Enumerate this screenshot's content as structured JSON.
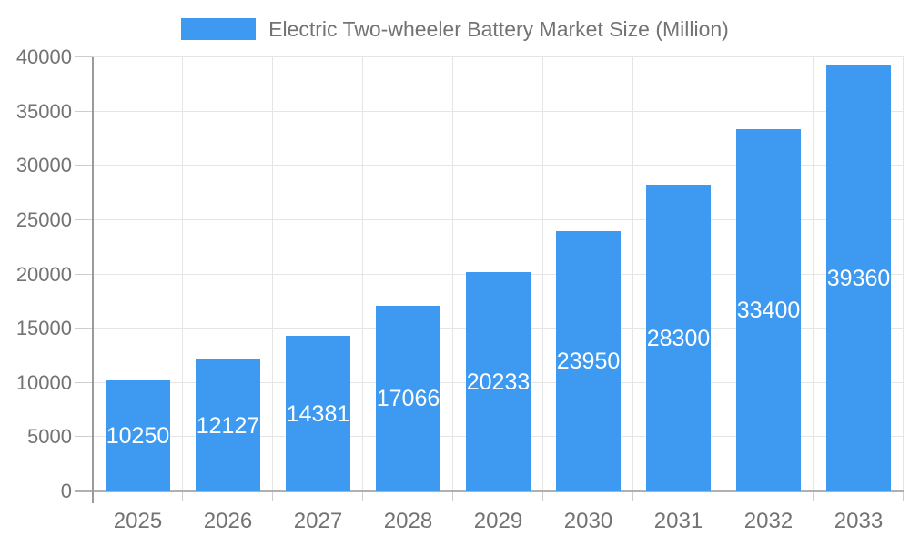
{
  "legend": {
    "label": "Electric Two-wheeler Battery Market Size (Million)"
  },
  "chart_data": {
    "type": "bar",
    "title": "Electric Two-wheeler Battery Market Size (Million)",
    "categories": [
      "2025",
      "2026",
      "2027",
      "2028",
      "2029",
      "2030",
      "2031",
      "2032",
      "2033"
    ],
    "values": [
      10250,
      12127,
      14381,
      17066,
      20233,
      23950,
      28300,
      33400,
      39360
    ],
    "xlabel": "",
    "ylabel": "",
    "ylim": [
      0,
      40000
    ],
    "yticks": [
      0,
      5000,
      10000,
      15000,
      20000,
      25000,
      30000,
      35000,
      40000
    ],
    "grid": true,
    "legend_position": "top",
    "colors": {
      "bar": "#3d9af0",
      "value_label": "#ffffff",
      "axis_text": "#737373",
      "gridline": "#e5e5e5",
      "tick": "#cccccc",
      "axis_line": "#9a9a9a",
      "baseline": "#b0b0b0",
      "background": "#ffffff"
    }
  }
}
